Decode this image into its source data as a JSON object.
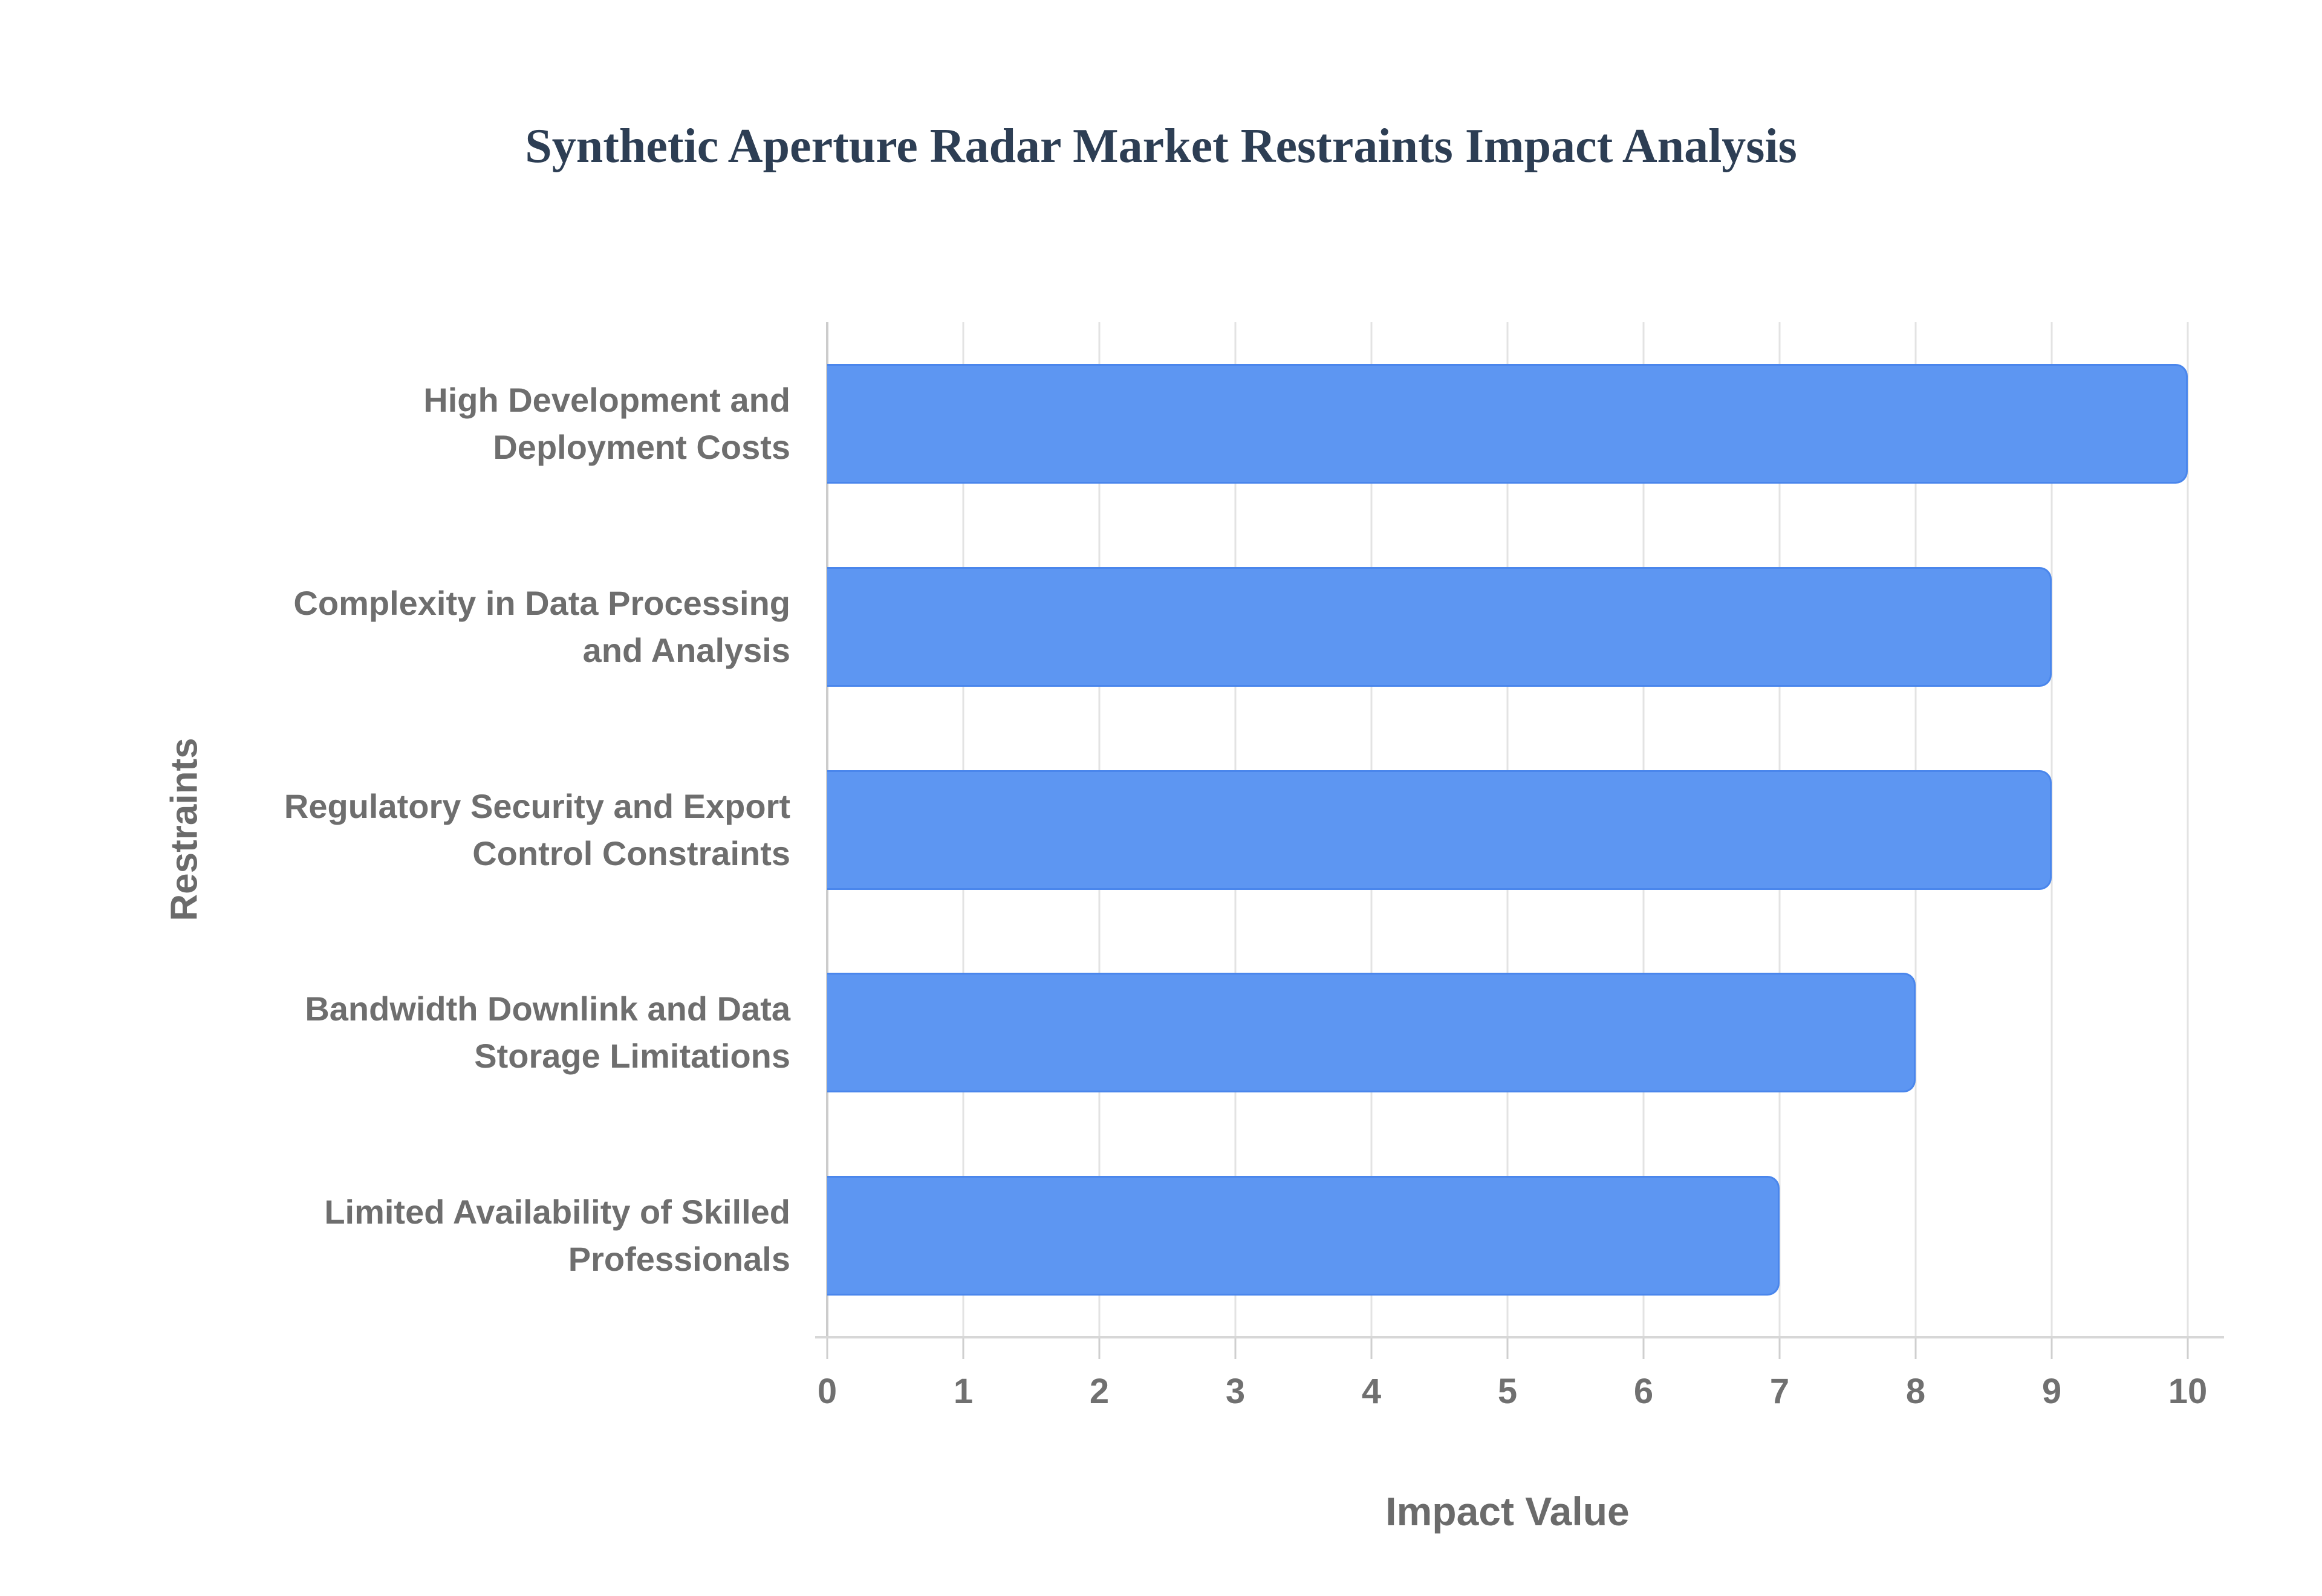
{
  "page": {
    "background_color": "#ffffff"
  },
  "chart_data": {
    "type": "bar",
    "orientation": "horizontal",
    "title": "Synthetic Aperture Radar Market Restraints Impact Analysis",
    "xlabel": "Impact Value",
    "ylabel": "Restraints",
    "categories": [
      "High Development and Deployment Costs",
      "Complexity in Data Processing and Analysis",
      "Regulatory Security and Export Control Constraints",
      "Bandwidth Downlink and Data Storage Limitations",
      "Limited Availability of Skilled Professionals"
    ],
    "values": [
      10,
      9,
      9,
      8,
      7
    ],
    "xlim": [
      0,
      10
    ],
    "xticks": [
      0,
      1,
      2,
      3,
      4,
      5,
      6,
      7,
      8,
      9,
      10
    ],
    "grid": "vertical-gridlines-on",
    "legend": "none",
    "colors": {
      "bar_fill": "#5d96f2",
      "bar_border": "#4a86ec",
      "title_text": "#2d3e54",
      "axis_title_text": "#6b6b6b",
      "category_label_text": "#6e6e6e",
      "tick_label_text": "#707070",
      "gridline": "#e3e3e3",
      "zero_line": "#cccccc",
      "axis_line": "#d7d7d7"
    }
  }
}
